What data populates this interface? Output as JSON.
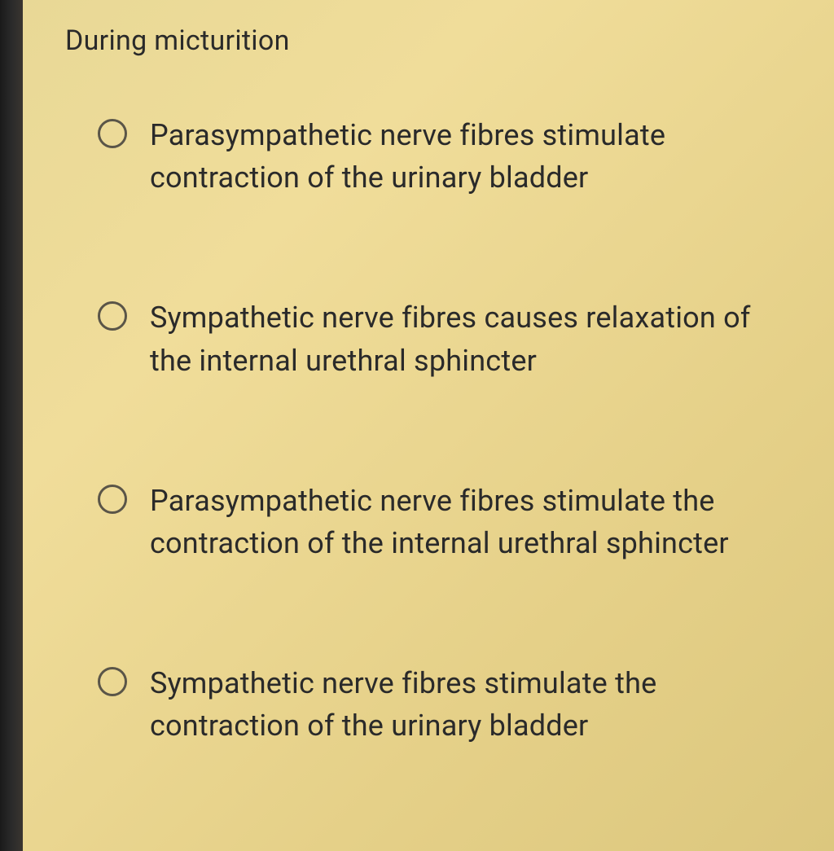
{
  "question": {
    "text": "During micturition"
  },
  "options": [
    {
      "id": "option-a",
      "text": "Parasympathetic nerve fibres stimulate contraction of the urinary bladder"
    },
    {
      "id": "option-b",
      "text": "Sympathetic nerve fibres causes relaxation of the internal urethral sphincter"
    },
    {
      "id": "option-c",
      "text": "Parasympathetic nerve fibres stimulate the contraction of the internal urethral sphincter"
    },
    {
      "id": "option-d",
      "text": "Sympathetic nerve fibres stimulate the contraction of the urinary bladder"
    }
  ],
  "colors": {
    "background_gradient_start": "#e8d896",
    "background_gradient_end": "#dcc77e",
    "text_color": "#2a2a2a",
    "radio_border": "#5a5548",
    "left_edge": "#1a1a1a"
  },
  "typography": {
    "question_fontsize": 34,
    "option_fontsize": 36,
    "font_family": "Roboto"
  }
}
